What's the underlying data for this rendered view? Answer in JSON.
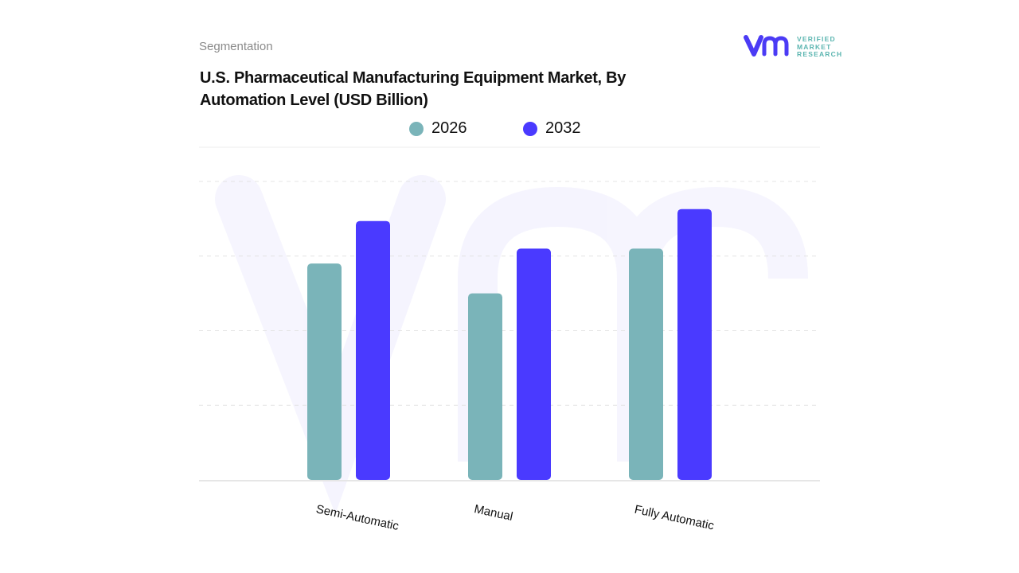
{
  "header": {
    "segment_label": "Segmentation",
    "title": "U.S. Pharmaceutical Manufacturing Equipment Market, By Automation Level (USD Billion)"
  },
  "logo": {
    "text": "VERIFIED MARKET RESEARCH",
    "colors": {
      "mark": "#4b3bf5",
      "text": "#5bb5b0"
    }
  },
  "chart_data": {
    "type": "bar",
    "title": "U.S. Pharmaceutical Manufacturing Equipment Market, By Automation Level (USD Billion)",
    "categories": [
      "Semi-Automatic",
      "Manual",
      "Fully Automatic"
    ],
    "series": [
      {
        "name": "2026",
        "values": [
          2.9,
          2.5,
          3.1
        ],
        "color": "#7ab4b9"
      },
      {
        "name": "2032",
        "values": [
          3.47,
          3.1,
          3.63
        ],
        "color": "#4a3aff"
      }
    ],
    "ylim": [
      0,
      4
    ],
    "grid": true,
    "y_tick_labels_shown": false,
    "legend_placement": "top-center"
  }
}
